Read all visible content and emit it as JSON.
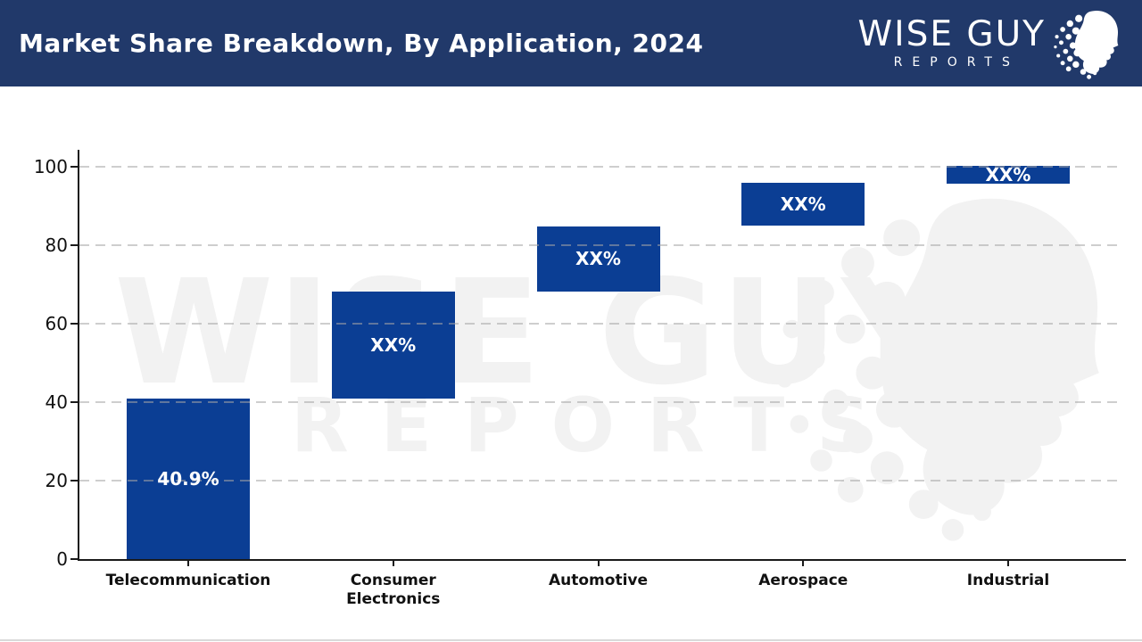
{
  "header": {
    "title": "Market Share Breakdown, By Application, 2024",
    "logo": {
      "line1": "WISE GUY",
      "line2": "REPORTS"
    }
  },
  "watermark": {
    "line1": "WISE GUY",
    "line2": "REPORTS"
  },
  "chart_data": {
    "type": "bar",
    "variant": "waterfall",
    "title": "Market Share Breakdown, By Application, 2024",
    "categories": [
      "Telecommunication",
      "Consumer Electronics",
      "Automotive",
      "Aerospace",
      "Industrial"
    ],
    "bars": [
      {
        "category": "Telecommunication",
        "tick_display": "Telecommunication",
        "start": 0,
        "end": 40.9,
        "label": "40.9%"
      },
      {
        "category": "Consumer Electronics",
        "tick_display": "Consumer\nElectronics",
        "start": 40.9,
        "end": 68.2,
        "label": "XX%"
      },
      {
        "category": "Automotive",
        "tick_display": "Automotive",
        "start": 68.2,
        "end": 84.8,
        "label": "XX%"
      },
      {
        "category": "Aerospace",
        "tick_display": "Aerospace",
        "start": 84.9,
        "end": 95.9,
        "label": "XX%"
      },
      {
        "category": "Industrial",
        "tick_display": "Industrial",
        "start": 95.7,
        "end": 100.2,
        "label": "XX%"
      }
    ],
    "ylim": [
      0,
      104
    ],
    "yticks": [
      0,
      20,
      40,
      60,
      80,
      100
    ],
    "grid": true,
    "grid_style": "dashed",
    "legend": false,
    "colors": {
      "bar": "#0b3e94",
      "bar_label": "#ffffff",
      "header_bg": "#21396a",
      "grid": "#c8c8c8",
      "axis": "#1a1a1a",
      "watermark": "#f2f2f2"
    }
  }
}
